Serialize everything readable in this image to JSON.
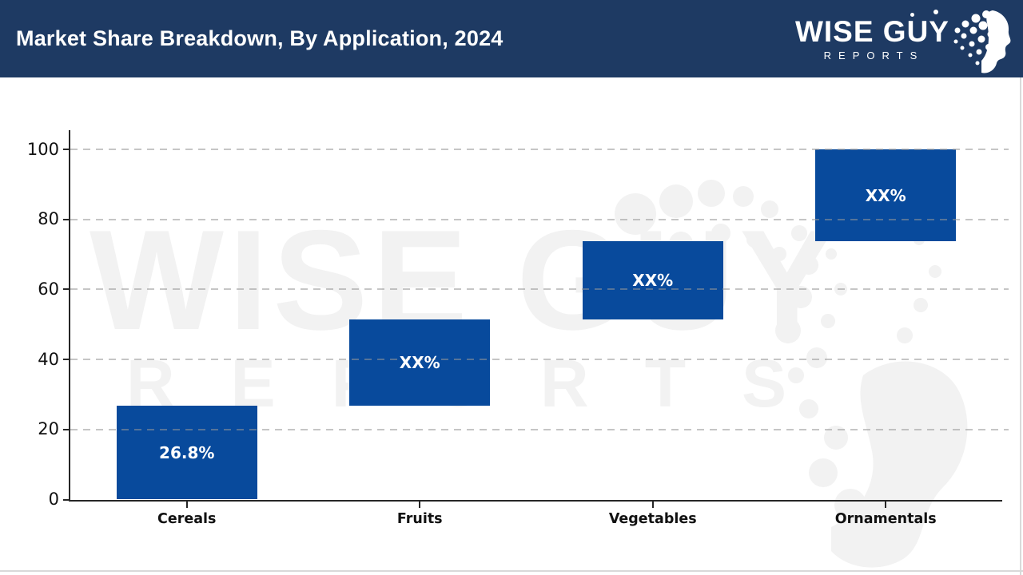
{
  "page": {
    "background": "#ffffff",
    "edge_line_color": "#d9d9d9"
  },
  "header": {
    "bg_color": "#1e3a63",
    "title": "Market Share Breakdown, By Application, 2024",
    "logo": {
      "line1": "WISE GUY",
      "line2": "REPORTS"
    }
  },
  "watermark": {
    "line1": "WISE GUY",
    "line2": "REPORTS"
  },
  "chart_data": {
    "type": "bar",
    "subtype": "floating-segment-waterfall",
    "title": "Market Share Breakdown, By Application, 2024",
    "categories": [
      "Cereals",
      "Fruits",
      "Vegetables",
      "Ornamentals"
    ],
    "segments": [
      {
        "category": "Cereals",
        "start": 0,
        "end": 26.8,
        "label": "26.8%"
      },
      {
        "category": "Fruits",
        "start": 26.8,
        "end": 51.4,
        "label": "XX%"
      },
      {
        "category": "Vegetables",
        "start": 51.4,
        "end": 73.7,
        "label": "XX%"
      },
      {
        "category": "Ornamentals",
        "start": 73.7,
        "end": 100,
        "label": "XX%"
      }
    ],
    "xlabel": "",
    "ylabel": "",
    "ylim": [
      0,
      105
    ],
    "yticks": [
      0,
      20,
      40,
      60,
      80,
      100
    ],
    "grid": "horizontal-dashed",
    "legend": "none",
    "bar_color": "#084a9c",
    "bar_label_color": "#ffffff",
    "axis_color": "#262626",
    "tick_label_color": "#111111"
  }
}
